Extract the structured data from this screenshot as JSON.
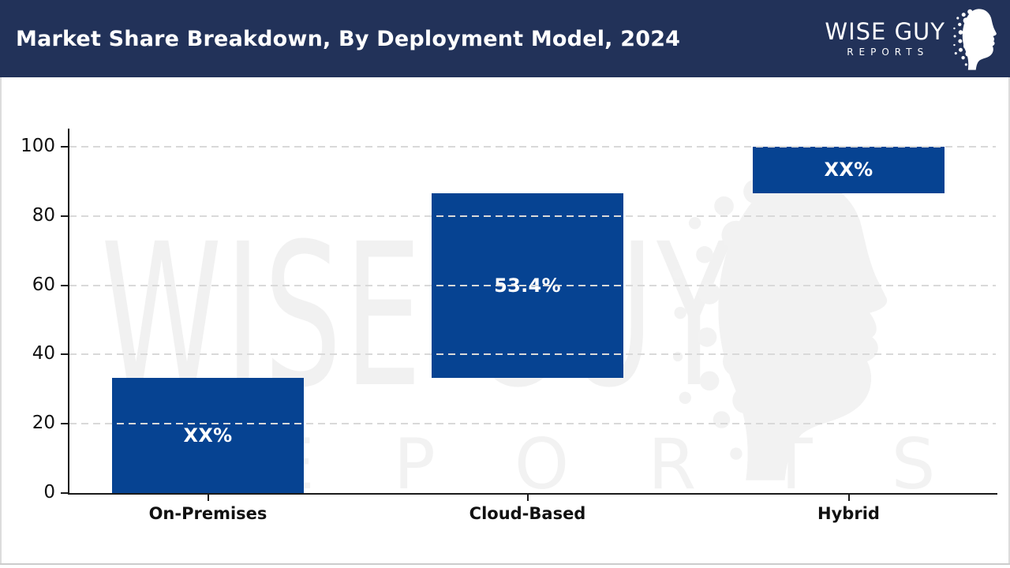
{
  "header": {
    "title": "Market Share Breakdown, By Deployment Model, 2024",
    "logo": {
      "name": "WISE GUY",
      "tagline": "REPORTS",
      "icon": "head-profile-dots"
    },
    "bg_color": "#223259"
  },
  "watermark": {
    "name": "WISE GUY",
    "tagline": "REPORTS",
    "icon": "head-profile-dots"
  },
  "chart_data": {
    "type": "bar",
    "variant": "floating-waterfall",
    "title": "Market Share Breakdown, By Deployment Model, 2024",
    "categories": [
      "On-Premises",
      "Cloud-Based",
      "Hybrid"
    ],
    "series": [
      {
        "name": "Market Share (%)",
        "segments": [
          {
            "category": "On-Premises",
            "start": 0,
            "end": 33.2,
            "label": "XX%"
          },
          {
            "category": "Cloud-Based",
            "start": 33.2,
            "end": 86.6,
            "label": "53.4%"
          },
          {
            "category": "Hybrid",
            "start": 86.6,
            "end": 100,
            "label": "XX%"
          }
        ]
      }
    ],
    "xlabel": "",
    "ylabel": "",
    "ylim": [
      0,
      100
    ],
    "yticks": [
      0,
      20,
      40,
      60,
      80,
      100
    ],
    "grid": {
      "horizontal": true,
      "style": "dashed",
      "on_top": true
    },
    "legend": "none",
    "colors": {
      "bar": "#064392",
      "bar_label": "#ffffff",
      "axis": "#1a1a1a",
      "grid": "#d9d9d9",
      "tick_label": "#111111"
    }
  }
}
